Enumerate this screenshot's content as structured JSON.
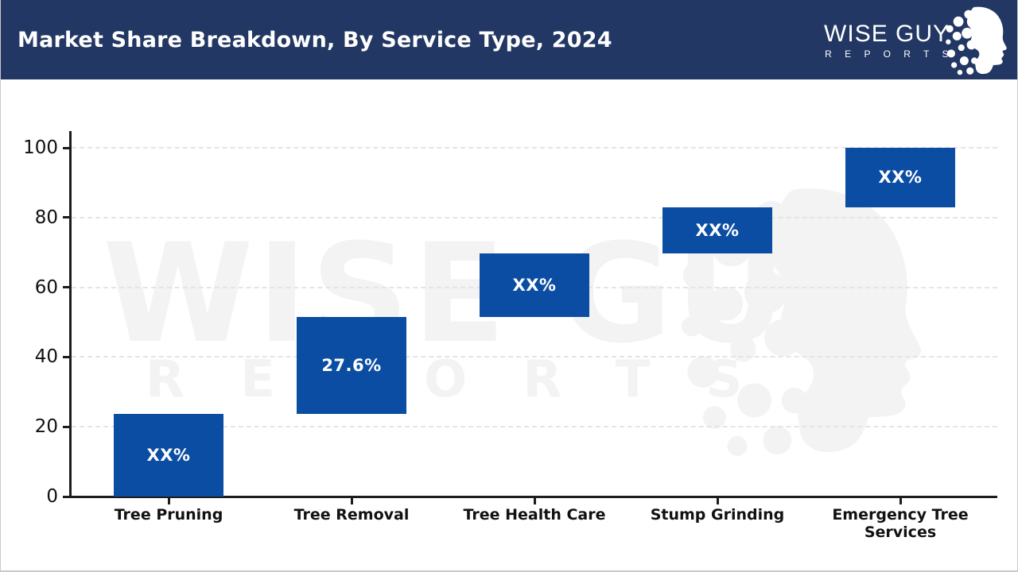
{
  "header": {
    "title": "Market Share Breakdown, By Service Type, 2024",
    "brand": {
      "line1": "WISE GUY",
      "line2": "R E P O R T S"
    }
  },
  "watermark": {
    "line1": "WISE GUY",
    "line2": "REPORTS"
  },
  "colors": {
    "header_bg": "#223763",
    "title_text": "#ffffff",
    "bar_fill": "#0b4da2",
    "bar_label": "#ffffff",
    "axis": "#1c1c1c",
    "tick_text": "#111111",
    "grid": "#e4e4e4",
    "watermark": "#f3f3f3",
    "page_border": "#c9c9c9"
  },
  "chart_data": {
    "type": "bar",
    "variant": "floating-waterfall",
    "title": "Market Share Breakdown, By Service Type, 2024",
    "categories": [
      "Tree Pruning",
      "Tree Removal",
      "Tree Health Care",
      "Stump Grinding",
      "Emergency Tree Services"
    ],
    "segments": [
      {
        "category": "Tree Pruning",
        "start": 0,
        "end": 23.8,
        "label": "XX%"
      },
      {
        "category": "Tree Removal",
        "start": 23.8,
        "end": 51.4,
        "label": "27.6%"
      },
      {
        "category": "Tree Health Care",
        "start": 51.4,
        "end": 69.6,
        "label": "XX%"
      },
      {
        "category": "Stump Grinding",
        "start": 69.6,
        "end": 83.0,
        "label": "XX%"
      },
      {
        "category": "Emergency Tree Services",
        "start": 83.0,
        "end": 100.0,
        "label": "XX%"
      }
    ],
    "yticks": [
      0,
      20,
      40,
      60,
      80,
      100
    ],
    "ylim": [
      0,
      100
    ],
    "xlabel": "",
    "ylabel": "",
    "grid": "horizontal-dashed",
    "legend": "none"
  }
}
